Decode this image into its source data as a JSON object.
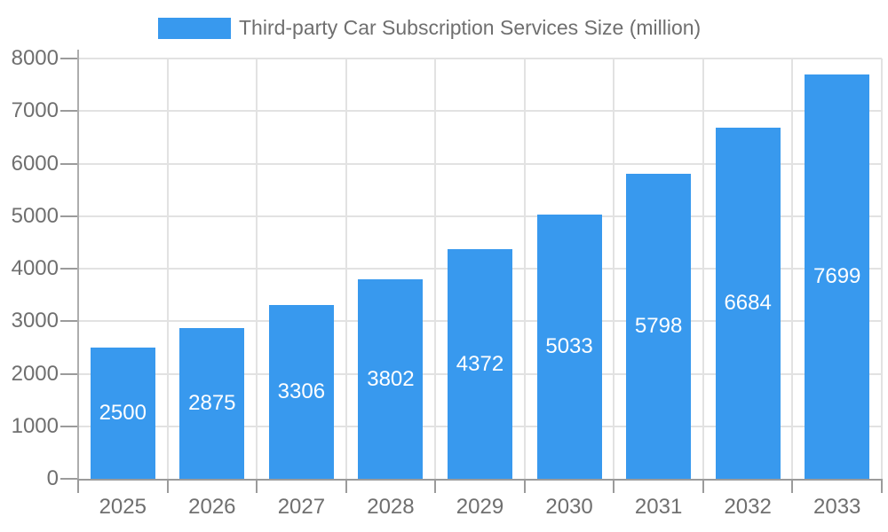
{
  "legend": {
    "label": "Third-party Car Subscription Services Size (million)"
  },
  "chart_data": {
    "type": "bar",
    "title": "Third-party Car Subscription Services Size (million)",
    "categories": [
      "2025",
      "2026",
      "2027",
      "2028",
      "2029",
      "2030",
      "2031",
      "2032",
      "2033"
    ],
    "values": [
      2500,
      2875,
      3306,
      3802,
      4372,
      5033,
      5798,
      6684,
      7699
    ],
    "series": [
      {
        "name": "Third-party Car Subscription Services Size (million)",
        "values": [
          2500,
          2875,
          3306,
          3802,
          4372,
          5033,
          5798,
          6684,
          7699
        ]
      }
    ],
    "xlabel": "",
    "ylabel": "",
    "ylim": [
      0,
      8000
    ],
    "ytick_step": 1000,
    "grid": true,
    "legend_position": "top",
    "value_labels": "inside-center-white"
  },
  "colors": {
    "bar": "#3899ee",
    "bar_value_text": "#ffffff",
    "axis_text": "#6f6f6f",
    "grid_line": "#e2e2e2",
    "axis_line": "#9b9b9b"
  }
}
